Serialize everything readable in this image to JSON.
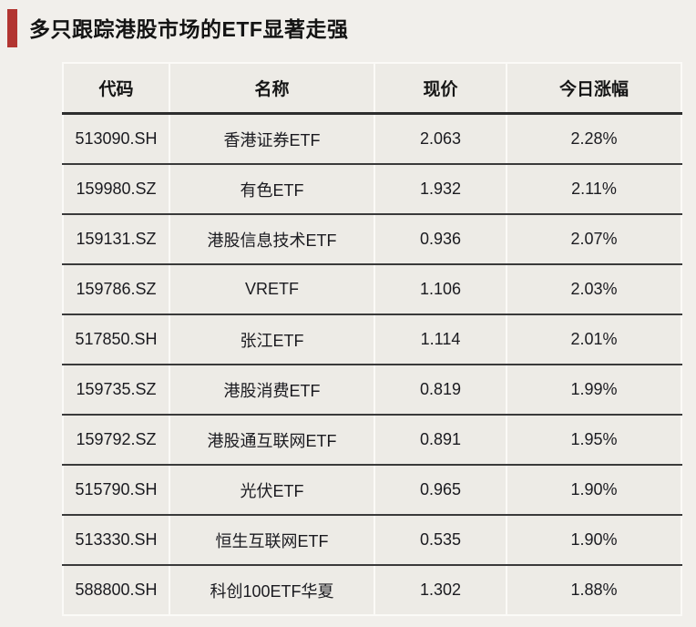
{
  "page": {
    "background_color": "#f1efeb"
  },
  "header": {
    "title": "多只跟踪港股市场的ETF显著走强",
    "accent_color": "#b23531"
  },
  "table": {
    "columns": [
      "代码",
      "名称",
      "现价",
      "今日涨幅"
    ],
    "rows": [
      {
        "code": "513090.SH",
        "name": "香港证券ETF",
        "price": "2.063",
        "change": "2.28%"
      },
      {
        "code": "159980.SZ",
        "name": "有色ETF",
        "price": "1.932",
        "change": "2.11%"
      },
      {
        "code": "159131.SZ",
        "name": "港股信息技术ETF",
        "price": "0.936",
        "change": "2.07%"
      },
      {
        "code": "159786.SZ",
        "name": "VRETF",
        "price": "1.106",
        "change": "2.03%"
      },
      {
        "code": "517850.SH",
        "name": "张江ETF",
        "price": "1.114",
        "change": "2.01%"
      },
      {
        "code": "159735.SZ",
        "name": "港股消费ETF",
        "price": "0.819",
        "change": "1.99%"
      },
      {
        "code": "159792.SZ",
        "name": "港股通互联网ETF",
        "price": "0.891",
        "change": "1.95%"
      },
      {
        "code": "515790.SH",
        "name": "光伏ETF",
        "price": "0.965",
        "change": "1.90%"
      },
      {
        "code": "513330.SH",
        "name": "恒生互联网ETF",
        "price": "0.535",
        "change": "1.90%"
      },
      {
        "code": "588800.SH",
        "name": "科创100ETF华夏",
        "price": "1.302",
        "change": "1.88%"
      }
    ]
  },
  "chart_data": {
    "type": "table",
    "title": "多只跟踪港股市场的ETF显著走强",
    "columns": [
      "代码",
      "名称",
      "现价",
      "今日涨幅"
    ],
    "rows": [
      [
        "513090.SH",
        "香港证券ETF",
        2.063,
        "2.28%"
      ],
      [
        "159980.SZ",
        "有色ETF",
        1.932,
        "2.11%"
      ],
      [
        "159131.SZ",
        "港股信息技术ETF",
        0.936,
        "2.07%"
      ],
      [
        "159786.SZ",
        "VRETF",
        1.106,
        "2.03%"
      ],
      [
        "517850.SH",
        "张江ETF",
        1.114,
        "2.01%"
      ],
      [
        "159735.SZ",
        "港股消费ETF",
        0.819,
        "1.99%"
      ],
      [
        "159792.SZ",
        "港股通互联网ETF",
        0.891,
        "1.95%"
      ],
      [
        "515790.SH",
        "光伏ETF",
        0.965,
        "1.90%"
      ],
      [
        "513330.SH",
        "恒生互联网ETF",
        0.535,
        "1.90%"
      ],
      [
        "588800.SH",
        "科创100ETF华夏",
        1.302,
        "1.88%"
      ]
    ]
  }
}
